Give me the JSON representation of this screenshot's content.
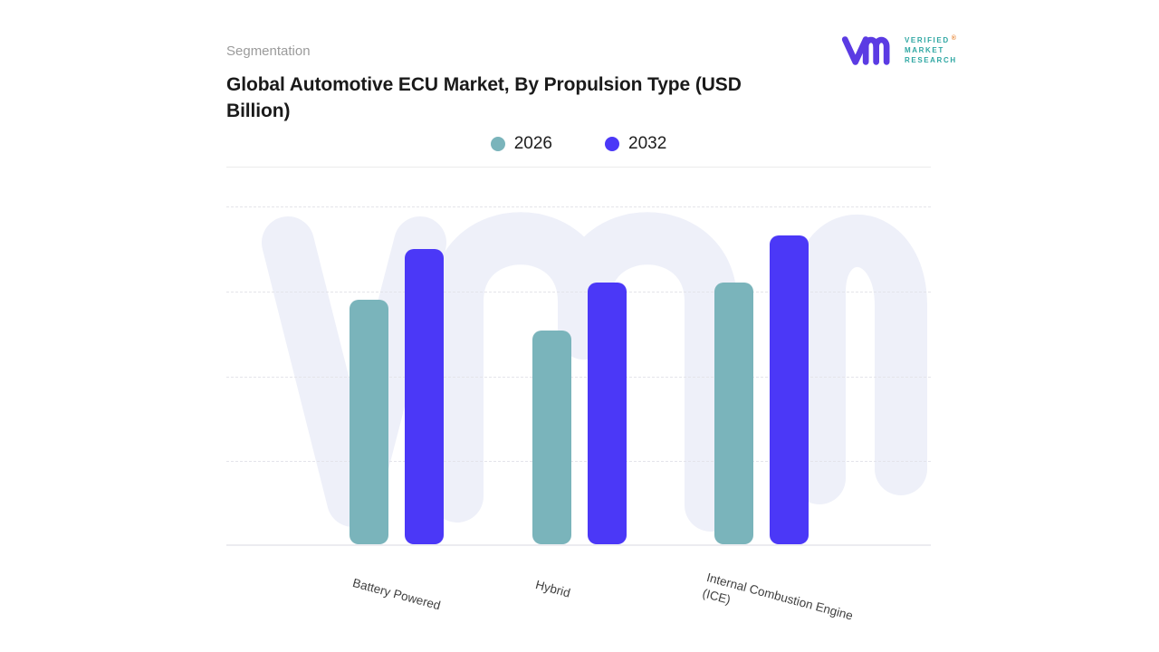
{
  "header": {
    "eyebrow": "Segmentation",
    "title": "Global Automotive ECU Market, By Propulsion Type (USD Billion)"
  },
  "logo": {
    "name": "verified-market-research-logo",
    "line1": "VERIFIED",
    "registered": "®",
    "line2": "MARKET",
    "line3": "RESEARCH"
  },
  "chart_data": {
    "type": "bar",
    "title": "Global Automotive ECU Market, By Propulsion Type (USD Billion)",
    "categories": [
      "Battery Powered",
      "Hybrid",
      "Internal Combustion Engine\n(ICE)"
    ],
    "series": [
      {
        "name": "2026",
        "color": "#7AB4BB",
        "values": [
          72,
          63,
          77
        ]
      },
      {
        "name": "2032",
        "color": "#4B38F7",
        "values": [
          87,
          77,
          91
        ]
      }
    ],
    "xlabel": "",
    "ylabel": "",
    "ylim": [
      0,
      100
    ],
    "y_ticks_labeled": false,
    "values_estimated_from_gridlines": true,
    "grid": "horizontal-dashed",
    "legend_position": "top-center"
  },
  "colors": {
    "teal": "#7AB4BB",
    "purple": "#4B38F7",
    "watermark": "#EEF0F9",
    "gridline": "#E4E4EA",
    "axis-line": "#ECECF0",
    "divider": "#EBEBEB",
    "title-text": "#1A1A1A",
    "muted-text": "#9B9B9B",
    "axis-text": "#3F3F3F",
    "logo-purple": "#5B3BE3",
    "logo-teal": "#2FA7A3",
    "registered": "#E98A3C"
  }
}
